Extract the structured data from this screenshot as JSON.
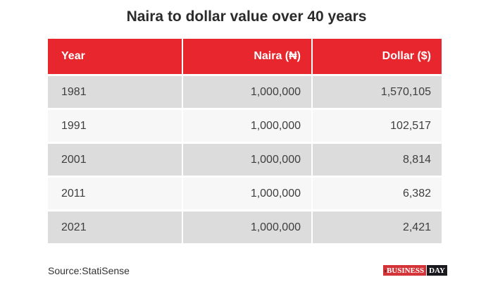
{
  "title": "Naira to dollar value over 40 years",
  "table": {
    "headers": [
      "Year",
      "Naira (₦)",
      "Dollar ($)"
    ],
    "rows": [
      [
        "1981",
        "1,000,000",
        "1,570,105"
      ],
      [
        "1991",
        "1,000,000",
        "102,517"
      ],
      [
        "2001",
        "1,000,000",
        "8,814"
      ],
      [
        "2011",
        "1,000,000",
        "6,382"
      ],
      [
        "2021",
        "1,000,000",
        "2,421"
      ]
    ]
  },
  "footer": {
    "source": "Source:StatiSense",
    "logo_arrow": "›",
    "logo_part1": "BUSINESS",
    "logo_part2": "DAY"
  },
  "colors": {
    "header_red": "#e8262d",
    "row_dark": "#dcdcdc",
    "row_light": "#f7f7f7",
    "logo_red": "#d43438",
    "logo_black": "#1a191d"
  },
  "chart_data": {
    "type": "table",
    "title": "Naira to dollar value over 40 years",
    "columns": [
      "Year",
      "Naira (₦)",
      "Dollar ($)"
    ],
    "rows": [
      {
        "year": 1981,
        "naira": 1000000,
        "dollar": 1570105
      },
      {
        "year": 1991,
        "naira": 1000000,
        "dollar": 102517
      },
      {
        "year": 2001,
        "naira": 1000000,
        "dollar": 8814
      },
      {
        "year": 2011,
        "naira": 1000000,
        "dollar": 6382
      },
      {
        "year": 2021,
        "naira": 1000000,
        "dollar": 2421
      }
    ],
    "source": "StatiSense"
  }
}
